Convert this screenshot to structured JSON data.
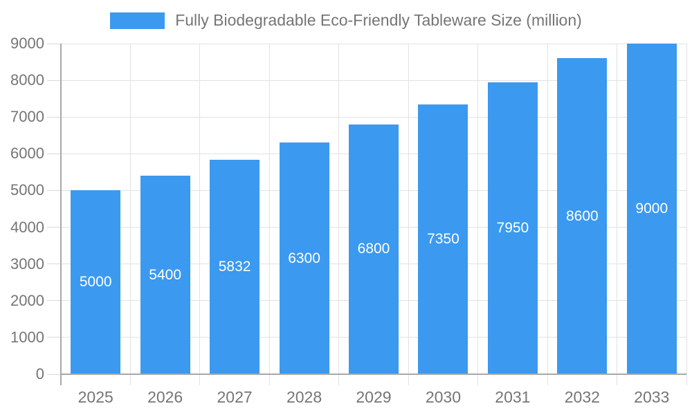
{
  "chart_data": {
    "type": "bar",
    "title": "Fully Biodegradable Eco-Friendly Tableware Size (million)",
    "legend": [
      "Fully Biodegradable Eco-Friendly Tableware Size (million)"
    ],
    "legend_position": "top-center",
    "categories": [
      "2025",
      "2026",
      "2027",
      "2028",
      "2029",
      "2030",
      "2031",
      "2032",
      "2033"
    ],
    "values": [
      5000,
      5400,
      5832,
      6300,
      6800,
      7350,
      7950,
      8600,
      9000
    ],
    "xlabel": "",
    "ylabel": "",
    "ylim": [
      0,
      9000
    ],
    "yticks": [
      0,
      1000,
      2000,
      3000,
      4000,
      5000,
      6000,
      7000,
      8000,
      9000
    ],
    "grid": true,
    "bar_value_labels_shown": true
  },
  "colors": {
    "bar": "#3B99F0",
    "axis_text": "#757575",
    "bar_label_text": "#FFFFFF",
    "gridline": "#E2E2E2",
    "axis_line": "#A8A8A8",
    "tick_line": "#D9D9D9",
    "background": "#FFFFFF"
  }
}
